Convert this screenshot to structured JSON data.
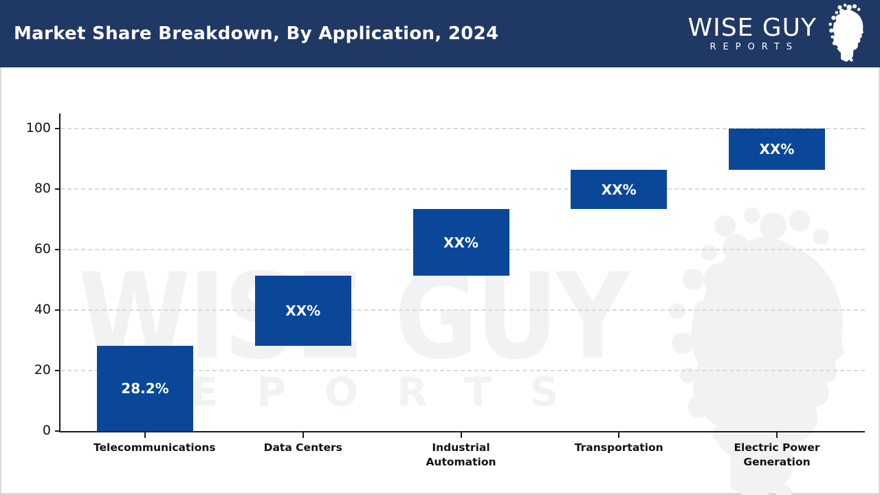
{
  "header": {
    "title": "Market Share Breakdown, By Application, 2024",
    "logo": {
      "line1": "WISE GUY",
      "line2": "REPORTS"
    }
  },
  "watermark": {
    "line1": "WISE GUY",
    "line2": "REPORTS"
  },
  "colors": {
    "header_bg": "#203864",
    "bar_blue": "#0a4799",
    "gridline": "#d8d8d8",
    "axis": "#1a1a1a",
    "watermark_gray": "#f1f2f4"
  },
  "chart_data": {
    "type": "bar",
    "subtype": "waterfall",
    "title": "Market Share Breakdown, By Application, 2024",
    "xlabel": "",
    "ylabel": "",
    "ylim": [
      0,
      100
    ],
    "yticks": [
      0,
      20,
      40,
      60,
      80,
      100
    ],
    "grid": "dashed-horizontal",
    "legend": "none",
    "bar_color": "#0a4799",
    "value_label_color": "#ffffff",
    "categories": [
      "Telecommunications",
      "Data Centers",
      "Industrial Automation",
      "Transportation",
      "Electric Power Generation"
    ],
    "segments": [
      {
        "category": "Telecommunications",
        "start": 0,
        "end": 28.2,
        "label": "28.2%"
      },
      {
        "category": "Data Centers",
        "start": 28.2,
        "end": 51.3,
        "label": "XX%"
      },
      {
        "category": "Industrial Automation",
        "start": 51.3,
        "end": 73.3,
        "label": "XX%"
      },
      {
        "category": "Transportation",
        "start": 73.3,
        "end": 86.4,
        "label": "XX%"
      },
      {
        "category": "Electric Power Generation",
        "start": 86.4,
        "end": 100,
        "label": "XX%"
      }
    ]
  }
}
